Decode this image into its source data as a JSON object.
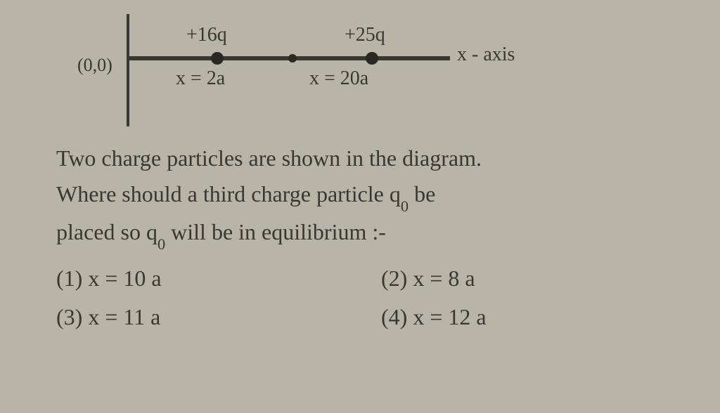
{
  "diagram": {
    "origin_label": "(0,0)",
    "charge1": {
      "label": "+16q",
      "position_label": "x = 2a"
    },
    "charge2": {
      "label": "+25q",
      "position_label": "x = 20a"
    },
    "axis_label": "x - axis",
    "colors": {
      "background": "#b8b4a8",
      "line": "#3a3632",
      "dot": "#2a2824",
      "text": "#3a3632"
    },
    "line_width": 5,
    "dot_radius": 9
  },
  "question": {
    "line1": "Two charge particles are shown in the diagram.",
    "line2_pre": "Where should a third charge particle q",
    "line2_sub": "0",
    "line2_post": " be",
    "line3_pre": "placed so q",
    "line3_sub": "0",
    "line3_post": " will be in equilibrium :-"
  },
  "options": {
    "opt1": "(1) x = 10 a",
    "opt2": "(2) x = 8 a",
    "opt3": "(3) x = 11 a",
    "opt4": "(4) x = 12 a"
  },
  "typography": {
    "body_fontsize": 32,
    "label_fontsize": 28
  }
}
